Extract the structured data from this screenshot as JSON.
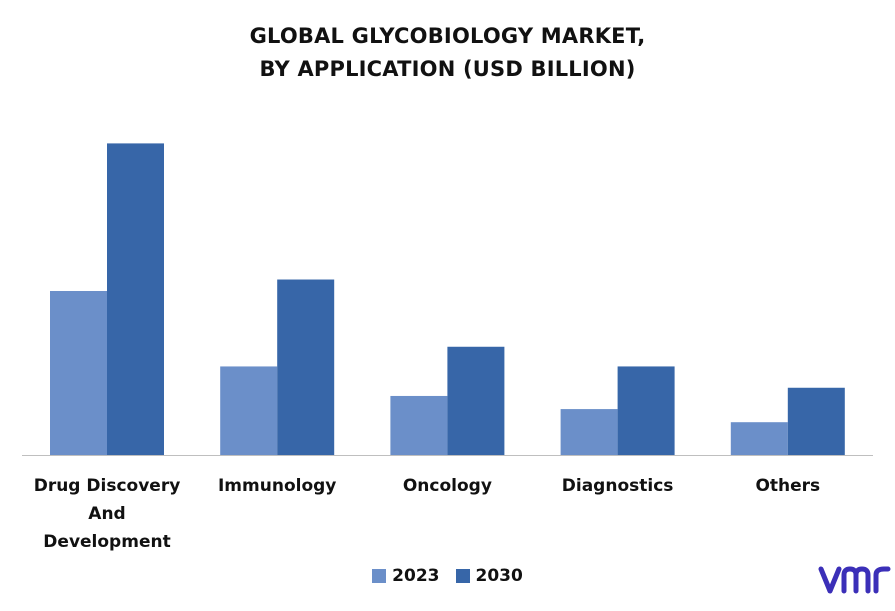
{
  "chart_data": {
    "type": "bar",
    "title_line1": "GLOBAL GLYCOBIOLOGY MARKET,",
    "title_line2": "BY APPLICATION (USD BILLION)",
    "categories": [
      [
        "Drug Discovery",
        "And",
        "Development"
      ],
      [
        "Immunology"
      ],
      [
        "Oncology"
      ],
      [
        "Diagnostics"
      ],
      [
        "Others"
      ]
    ],
    "series": [
      {
        "name": "2023",
        "color": "#6b8fc9",
        "values": [
          0.5,
          0.27,
          0.18,
          0.14,
          0.1
        ]
      },
      {
        "name": "2030",
        "color": "#3766a8",
        "values": [
          0.95,
          0.535,
          0.33,
          0.27,
          0.205
        ]
      }
    ],
    "ylim": [
      0,
      1.0
    ],
    "grid": false,
    "legend": "bottom"
  },
  "logo": {
    "alt": "vmr-logo",
    "color": "#3b2fb8"
  }
}
